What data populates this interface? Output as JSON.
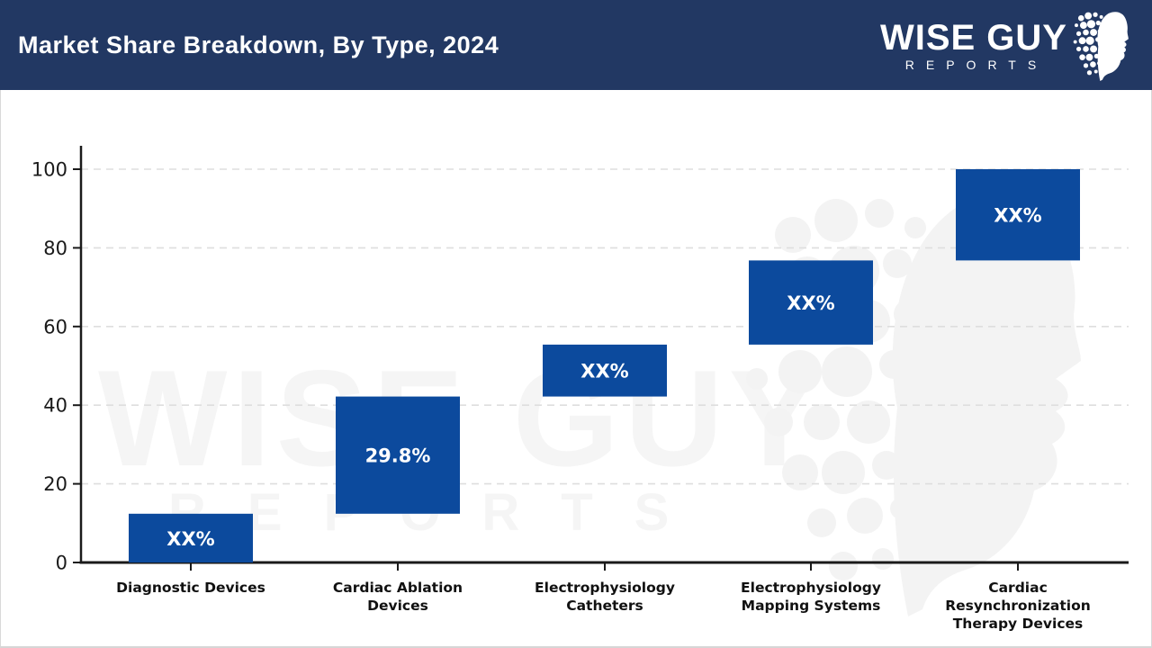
{
  "header": {
    "title": "Market Share Breakdown, By Type, 2024",
    "background_color": "#223863"
  },
  "logo": {
    "name": "WISE GUY",
    "subtitle": "REPORTS",
    "head_icon": "dotted-head-profile"
  },
  "watermark": {
    "line1": "WISE GUY",
    "line2": "REPORTS",
    "head_icon": "dotted-head-profile",
    "color": "#f5f5f5"
  },
  "chart_data": {
    "type": "waterfall",
    "title": "Market Share Breakdown, By Type, 2024",
    "categories": [
      [
        "Diagnostic Devices"
      ],
      [
        "Cardiac Ablation",
        "Devices"
      ],
      [
        "Electrophysiology",
        "Catheters"
      ],
      [
        "Electrophysiology",
        "Mapping Systems"
      ],
      [
        "Cardiac",
        "Resynchronization",
        "Therapy Devices"
      ]
    ],
    "segments": [
      {
        "category": "Diagnostic Devices",
        "start": 0,
        "end": 12.4,
        "label": "XX%"
      },
      {
        "category": "Cardiac Ablation Devices",
        "start": 12.4,
        "end": 42.2,
        "label": "29.8%"
      },
      {
        "category": "Electrophysiology Catheters",
        "start": 42.2,
        "end": 55.4,
        "label": "XX%"
      },
      {
        "category": "Electrophysiology Mapping Systems",
        "start": 55.4,
        "end": 76.8,
        "label": "XX%"
      },
      {
        "category": "Cardiac Resynchronization Therapy Devices",
        "start": 76.8,
        "end": 100,
        "label": "XX%"
      }
    ],
    "xlabel": "",
    "ylabel": "",
    "ylim": [
      0,
      100
    ],
    "yticks": [
      0,
      20,
      40,
      60,
      80,
      100
    ],
    "bar_color": "#0C4A9D",
    "axis_color": "#1a1a1a",
    "grid": "dashed-horizontal",
    "gridline_color": "#dedede",
    "legend": "none"
  }
}
